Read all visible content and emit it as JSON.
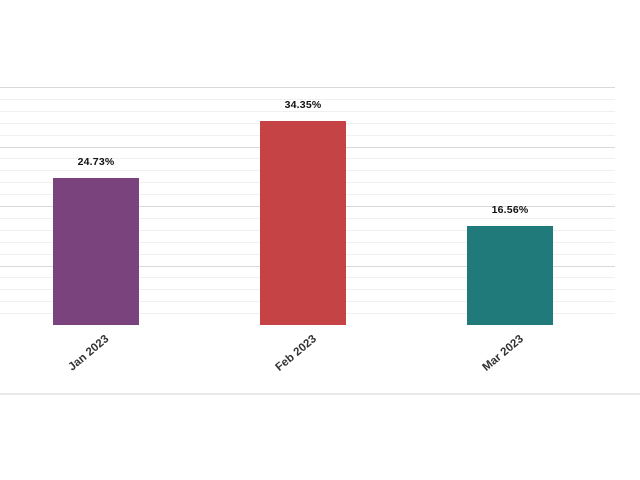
{
  "page": {
    "background_color": "#FFFFFF"
  },
  "chart_data": {
    "type": "bar",
    "title": "",
    "xlabel": "",
    "ylabel": "",
    "categories": [
      "Jan 2023",
      "Feb 2023",
      "Mar 2023"
    ],
    "values": [
      24.73,
      34.35,
      16.56
    ],
    "value_labels": [
      "24.73%",
      "34.35%",
      "16.56%"
    ],
    "bar_colors": [
      "#7B437E",
      "#C54344",
      "#207A7A"
    ],
    "ylim": [
      0,
      40
    ],
    "y_major_step_percent": 10,
    "y_minor_step_percent": 2,
    "grid": "horizontal",
    "legend": "none",
    "axis_tick_labels_visible": false,
    "category_label_rotation_deg": -40,
    "gridline_major_color": "#D9D9D9",
    "gridline_minor_color": "#F0F0F0",
    "separator_color": "#E8E8E8",
    "value_label_color": "#111111",
    "category_label_color": "#333333"
  }
}
